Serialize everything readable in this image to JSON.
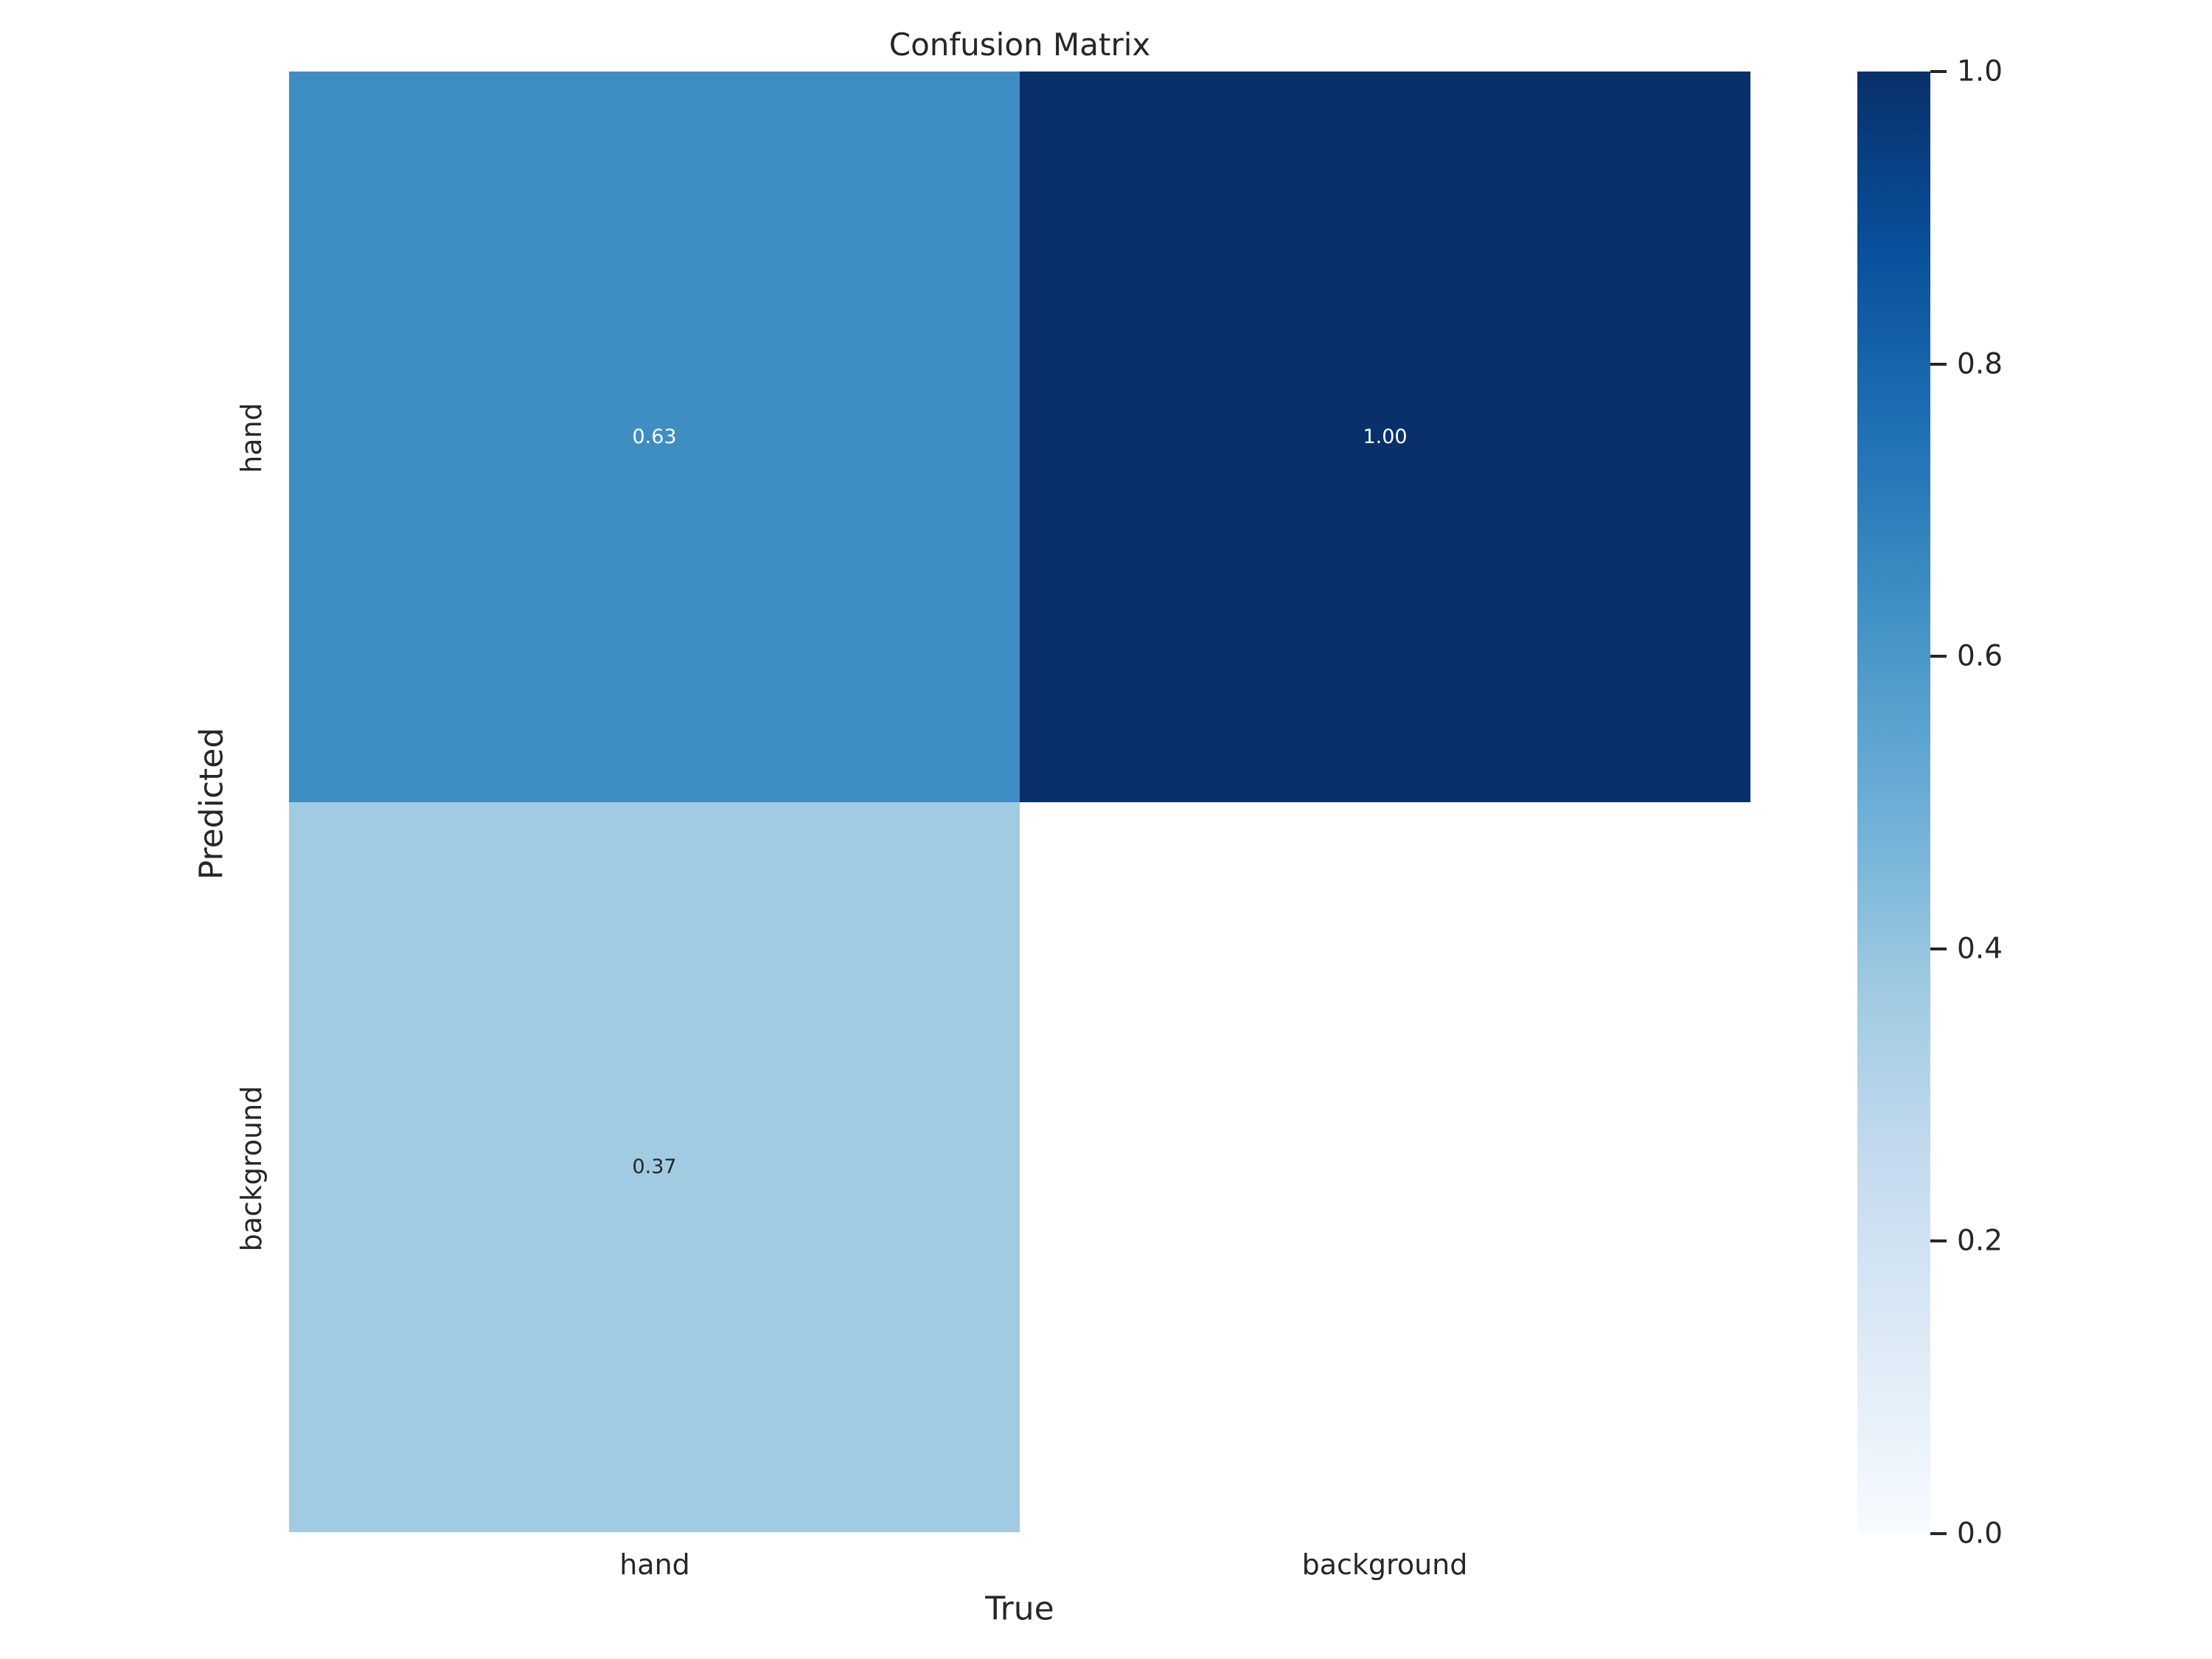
{
  "figure": {
    "background": "#ffffff",
    "text_color": "#262626"
  },
  "chart_data": {
    "type": "heatmap",
    "title": "Confusion Matrix",
    "xlabel": "True",
    "ylabel": "Predicted",
    "x_ticklabels": [
      "hand",
      "background"
    ],
    "y_ticklabels": [
      "hand",
      "background"
    ],
    "colormap": "Blues",
    "vmin": 0.0,
    "vmax": 1.0,
    "grid": false,
    "values": [
      [
        0.63,
        1.0
      ],
      [
        0.37,
        null
      ]
    ],
    "cells": [
      {
        "row": "hand",
        "col": "hand",
        "value": 0.63,
        "label": "0.63",
        "bg": "#3e8ec4",
        "fg": "#ffffff"
      },
      {
        "row": "hand",
        "col": "background",
        "value": 1.0,
        "label": "1.00",
        "bg": "#08306b",
        "fg": "#ffffff"
      },
      {
        "row": "background",
        "col": "hand",
        "value": 0.37,
        "label": "0.37",
        "bg": "#a0cbe2",
        "fg": "#262626"
      },
      {
        "row": "background",
        "col": "background",
        "value": null,
        "label": "",
        "bg": "#ffffff",
        "fg": "#262626"
      }
    ],
    "colorbar": {
      "position": "right",
      "tick_labels": [
        "1.0",
        "0.8",
        "0.6",
        "0.4",
        "0.2",
        "0.0"
      ],
      "gradient_stops_bottom_to_top": [
        "#f7fbff",
        "#deebf7",
        "#c6dbef",
        "#9ecae1",
        "#6baed6",
        "#4292c6",
        "#2171b5",
        "#08519c",
        "#08306b"
      ]
    }
  }
}
